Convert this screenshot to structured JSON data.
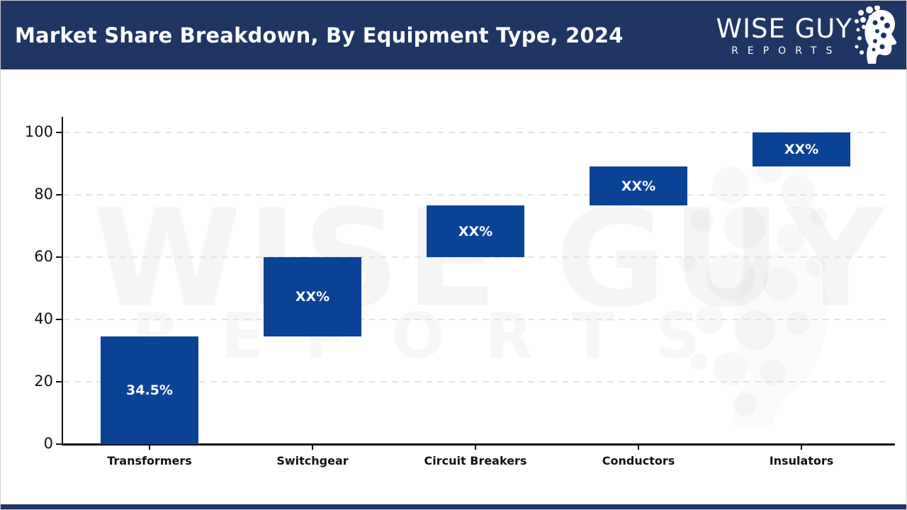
{
  "header": {
    "title": "Market Share Breakdown, By Equipment Type, 2024",
    "logo": {
      "line1": "WISE GUY",
      "line2": "REPORTS"
    }
  },
  "watermark": {
    "line1": "WISE GUY",
    "line2": "REPORTS"
  },
  "colors": {
    "header_bg": "#1F3563",
    "footer_bg": "#1F3563",
    "bar": "#0A4296",
    "bar_label": "#FFFFFF",
    "gridline": "#E3E3E3",
    "axis": "#111111",
    "title_text": "#FFFFFF"
  },
  "chart_data": {
    "type": "bar",
    "subtype": "waterfall",
    "title": "Market Share Breakdown, By Equipment Type, 2024",
    "categories": [
      "Transformers",
      "Switchgear",
      "Circuit Breakers",
      "Conductors",
      "Insulators"
    ],
    "segments": [
      {
        "category": "Transformers",
        "start": 0,
        "end": 34.5,
        "label": "34.5%"
      },
      {
        "category": "Switchgear",
        "start": 34.5,
        "end": 60,
        "label": "XX%"
      },
      {
        "category": "Circuit Breakers",
        "start": 60,
        "end": 76.5,
        "label": "XX%"
      },
      {
        "category": "Conductors",
        "start": 76.5,
        "end": 89,
        "label": "XX%"
      },
      {
        "category": "Insulators",
        "start": 89,
        "end": 100,
        "label": "XX%"
      }
    ],
    "yticks": [
      0,
      20,
      40,
      60,
      80,
      100
    ],
    "ylim": [
      0,
      105
    ],
    "xlabel": "",
    "ylabel": "",
    "grid": "horizontal-dashed",
    "legend": "none"
  }
}
